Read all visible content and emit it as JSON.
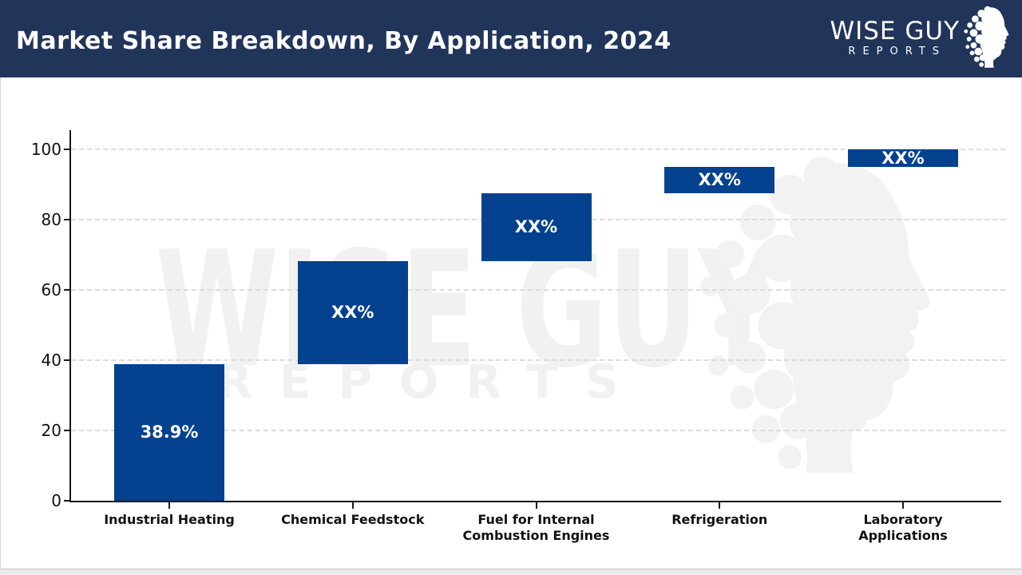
{
  "header": {
    "title": "Market Share Breakdown, By Application, 2024",
    "logo": {
      "wordmark": "WISE GUY",
      "subtitle": "REPORTS"
    }
  },
  "watermark": {
    "wordmark": "WISE GUY",
    "subtitle": "REPORTS"
  },
  "chart_data": {
    "type": "bar",
    "subtype": "waterfall-floating-bars",
    "title": "Market Share Breakdown, By Application, 2024",
    "xlabel": "",
    "ylabel": "",
    "ylim": [
      0,
      105
    ],
    "yticks": [
      0,
      20,
      40,
      60,
      80,
      100
    ],
    "grid": "horizontal-dashed",
    "legend": "none",
    "bar_color": "#04418F",
    "bar_label_color": "#FFFFFF",
    "categories": [
      "Industrial Heating",
      "Chemical Feedstock",
      "Fuel for Internal Combustion Engines",
      "Refrigeration",
      "Laboratory Applications"
    ],
    "bars": [
      {
        "category": "Industrial Heating",
        "start": 0,
        "end": 38.9,
        "size": 38.9,
        "label": "38.9%"
      },
      {
        "category": "Chemical Feedstock",
        "start": 38.9,
        "end": 68.2,
        "size": 29.3,
        "label": "XX%"
      },
      {
        "category": "Fuel for Internal Combustion Engines",
        "start": 68.2,
        "end": 87.6,
        "size": 19.4,
        "label": "XX%"
      },
      {
        "category": "Refrigeration",
        "start": 87.6,
        "end": 95.0,
        "size": 7.4,
        "label": "XX%"
      },
      {
        "category": "Laboratory Applications",
        "start": 95.0,
        "end": 100.0,
        "size": 5.0,
        "label": "XX%"
      }
    ]
  }
}
